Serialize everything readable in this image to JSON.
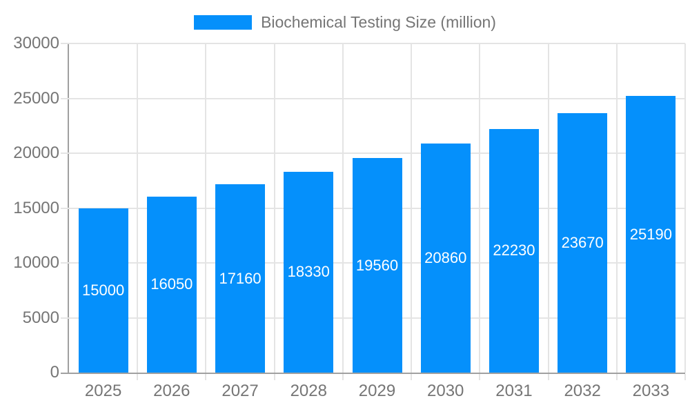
{
  "legend": {
    "label": "Biochemical Testing Size (million)"
  },
  "colors": {
    "bar": "#0590FB",
    "grid": "#e4e4e4",
    "axis": "#a0a0a0",
    "text": "#757575",
    "bar_label": "#ffffff",
    "background": "#ffffff"
  },
  "chart_data": {
    "type": "bar",
    "title": "Biochemical Testing Size (million)",
    "categories": [
      "2025",
      "2026",
      "2027",
      "2028",
      "2029",
      "2030",
      "2031",
      "2032",
      "2033"
    ],
    "series": [
      {
        "name": "Biochemical Testing Size (million)",
        "values": [
          15000,
          16050,
          17160,
          18330,
          19560,
          20860,
          22230,
          23670,
          25190
        ]
      }
    ],
    "xlabel": "",
    "ylabel": "",
    "ylim": [
      0,
      30000
    ],
    "yticks": [
      0,
      5000,
      10000,
      15000,
      20000,
      25000,
      30000
    ],
    "grid": true,
    "legend_position": "top",
    "bar_labels_inside": true
  }
}
